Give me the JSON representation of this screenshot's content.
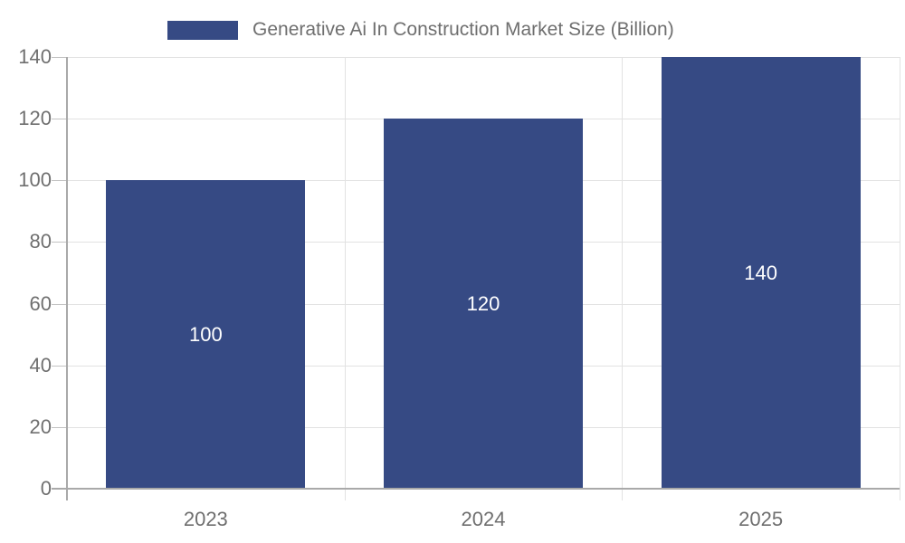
{
  "chart_data": {
    "type": "bar",
    "title": "Generative Ai In Construction Market Size (Billion)",
    "categories": [
      "2023",
      "2024",
      "2025"
    ],
    "values": [
      100,
      120,
      140
    ],
    "value_labels": [
      "100",
      "120",
      "140"
    ],
    "xlabel": "",
    "ylabel": "",
    "ylim": [
      0,
      140
    ],
    "y_ticks": [
      0,
      20,
      40,
      60,
      80,
      100,
      120,
      140
    ],
    "grid": true,
    "legend_position": "top",
    "colors": {
      "bar": "#364A84",
      "value_label": "#FFFFFF",
      "axis": "#A9A9A9",
      "grid": "#E2E2E2",
      "tick": "#C2C2C2",
      "text": "#6F6F6F",
      "background": "#FFFFFF"
    }
  }
}
